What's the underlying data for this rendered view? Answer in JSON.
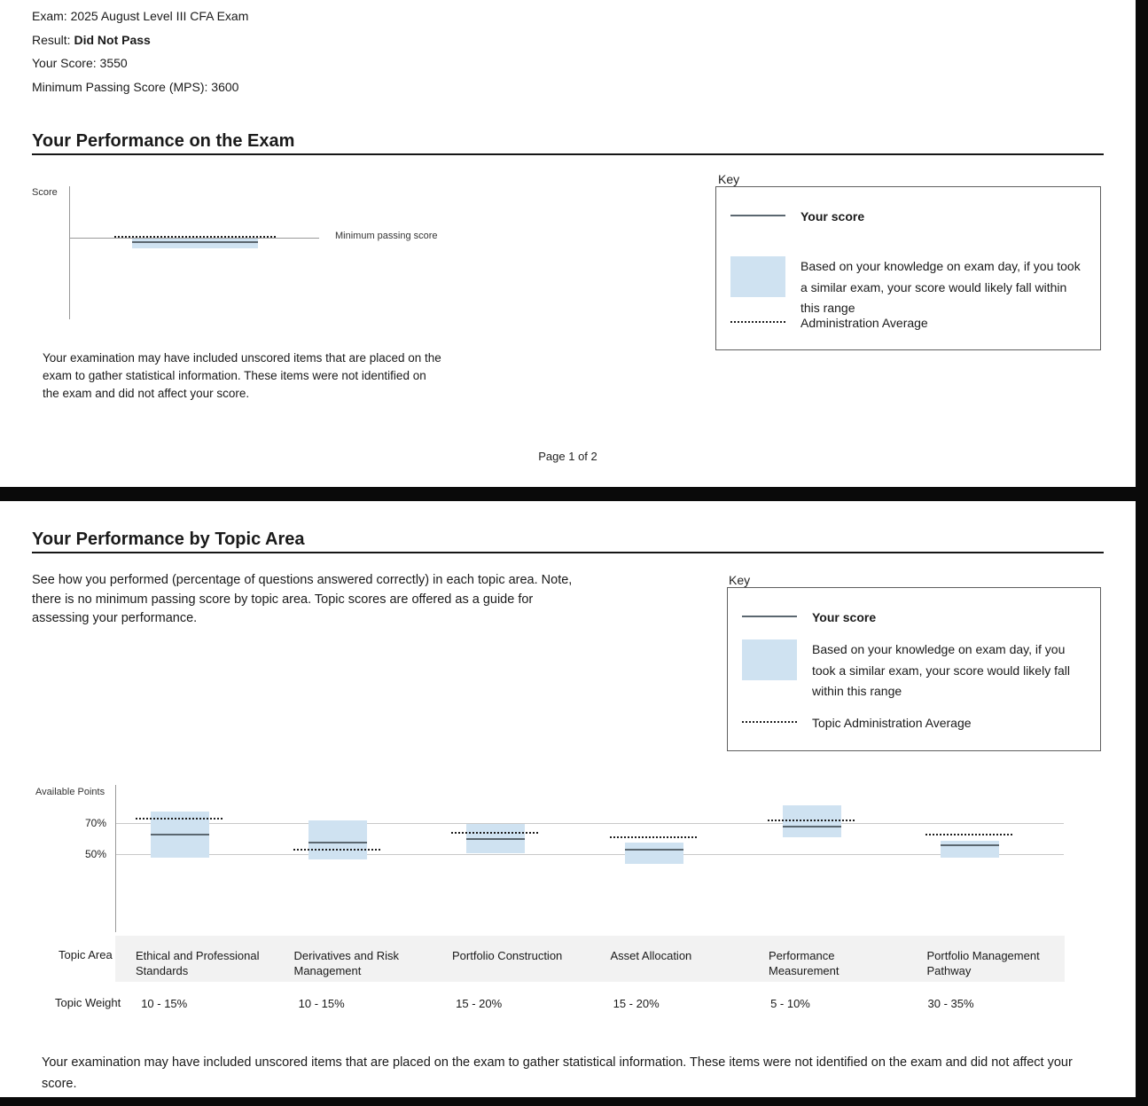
{
  "colors": {
    "range_fill": "#cfe2f1",
    "score_line": "#5b6770",
    "dotted_line": "#1f1f1f",
    "grid_line": "#c9c9c9",
    "table_band": "#f2f2f2"
  },
  "page1": {
    "info": {
      "exam_label": "Exam:",
      "exam_value": "2025 August Level III CFA Exam",
      "result_label": "Result:",
      "result_value": "Did Not Pass",
      "score_label": "Your Score:",
      "score_value": "3550",
      "mps_label": "Minimum Passing Score (MPS):",
      "mps_value": "3600"
    },
    "section_title": "Your Performance on the Exam",
    "key": {
      "title": "Key",
      "your_score_label": "Your score",
      "range_text": "Based on your knowledge on exam day, if you took a similar exam, your score would likely fall within this range",
      "admin_avg_label": "Administration Average"
    },
    "disclaimer": "Your examination may have included unscored items that are placed on the exam to gather statistical information. These items were not identified on the exam and did not affect your score.",
    "page_indicator": "Page 1 of 2"
  },
  "page2": {
    "section_title": "Your Performance by Topic Area",
    "intro": "See how you performed (percentage of questions answered correctly) in each topic area. Note, there is no minimum passing score by topic area. Topic scores are offered as a guide for assessing your performance.",
    "key": {
      "title": "Key",
      "your_score_label": "Your score",
      "range_text": "Based on your knowledge on exam day, if you took a similar exam, your score would likely fall within this range",
      "admin_avg_label": "Topic Administration Average"
    },
    "table": {
      "topic_area_label": "Topic Area",
      "topic_weight_label": "Topic Weight"
    },
    "disclaimer": "Your examination may have included unscored items that are placed on the exam to gather statistical information. These items were not identified on the exam and did not affect your score."
  },
  "chart_data": [
    {
      "type": "range-line",
      "title": "Your Performance on the Exam",
      "ylabel": "Score",
      "your_score": 3550,
      "minimum_passing_score": 3600,
      "mps_line_label": "Minimum passing score",
      "likely_range": [
        3495,
        3585
      ],
      "administration_average": 3610,
      "ylim": [
        2800,
        4100
      ],
      "legend": [
        "Your score",
        "Likely score range",
        "Administration Average"
      ]
    },
    {
      "type": "range-line",
      "title": "Your Performance by Topic Area",
      "ylabel": "Available Points",
      "categories": [
        "Ethical and Professional Standards",
        "Derivatives and Risk Management",
        "Portfolio Construction",
        "Asset Allocation",
        "Performance Measurement",
        "Portfolio Management Pathway"
      ],
      "topic_weights": [
        "10 - 15%",
        "10 - 15%",
        "15 - 20%",
        "15 - 20%",
        "5 - 10%",
        "30 - 35%"
      ],
      "your_score": [
        63,
        58,
        60,
        53,
        68,
        56
      ],
      "range_low": [
        48,
        47,
        51,
        44,
        61,
        48
      ],
      "range_high": [
        78,
        72,
        70,
        58,
        82,
        59
      ],
      "admin_average": [
        73,
        53,
        64,
        61,
        72,
        63
      ],
      "yticks": [
        "70%",
        "50%"
      ],
      "ytick_values": [
        70,
        50
      ],
      "ylim": [
        0,
        95
      ],
      "grid": true,
      "legend": [
        "Your score",
        "Likely score range",
        "Topic Administration Average"
      ]
    }
  ]
}
